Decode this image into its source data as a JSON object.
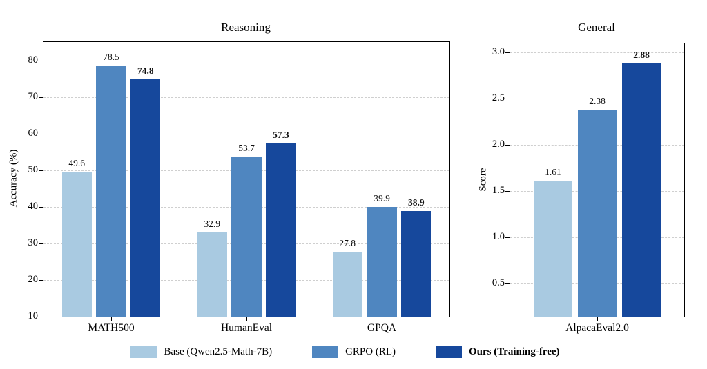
{
  "figure": {
    "legend": [
      {
        "label": "Base (Qwen2.5-Math-7B)",
        "color": "#a9cae1",
        "bold": false
      },
      {
        "label": "GRPO (RL)",
        "color": "#4f86c0",
        "bold": false
      },
      {
        "label": "Ours (Training-free)",
        "color": "#16489c",
        "bold": true
      }
    ]
  },
  "chart_data": [
    {
      "type": "bar",
      "title": "Reasoning",
      "ylabel": "Accuracy (%)",
      "ylim": [
        10,
        85
      ],
      "yticks": [
        "10",
        "20",
        "30",
        "40",
        "50",
        "60",
        "70",
        "80"
      ],
      "categories": [
        "MATH500",
        "HumanEval",
        "GPQA"
      ],
      "series": [
        {
          "name": "Base (Qwen2.5-Math-7B)",
          "color": "#a9cae1",
          "values": [
            49.6,
            32.9,
            27.8
          ],
          "value_labels": [
            "49.6",
            "32.9",
            "27.8"
          ],
          "bold_labels": false
        },
        {
          "name": "GRPO (RL)",
          "color": "#4f86c0",
          "values": [
            78.5,
            53.7,
            39.9
          ],
          "value_labels": [
            "78.5",
            "53.7",
            "39.9"
          ],
          "bold_labels": false
        },
        {
          "name": "Ours (Training-free)",
          "color": "#16489c",
          "values": [
            74.8,
            57.3,
            38.9
          ],
          "value_labels": [
            "74.8",
            "57.3",
            "38.9"
          ],
          "bold_labels": true
        }
      ],
      "grid": "dashed-horizontal",
      "legend_position": "bottom-figure"
    },
    {
      "type": "bar",
      "title": "General",
      "ylabel": "Score",
      "ylim": [
        0.14,
        3.1
      ],
      "yticks": [
        "0.5",
        "1.0",
        "1.5",
        "2.0",
        "2.5",
        "3.0"
      ],
      "categories": [
        "AlpacaEval2.0"
      ],
      "series": [
        {
          "name": "Base (Qwen2.5-Math-7B)",
          "color": "#a9cae1",
          "values": [
            1.61
          ],
          "value_labels": [
            "1.61"
          ],
          "bold_labels": false
        },
        {
          "name": "GRPO (RL)",
          "color": "#4f86c0",
          "values": [
            2.38
          ],
          "value_labels": [
            "2.38"
          ],
          "bold_labels": false
        },
        {
          "name": "Ours (Training-free)",
          "color": "#16489c",
          "values": [
            2.88
          ],
          "value_labels": [
            "2.88"
          ],
          "bold_labels": true
        }
      ],
      "grid": "dashed-horizontal",
      "legend_position": "bottom-figure"
    }
  ]
}
